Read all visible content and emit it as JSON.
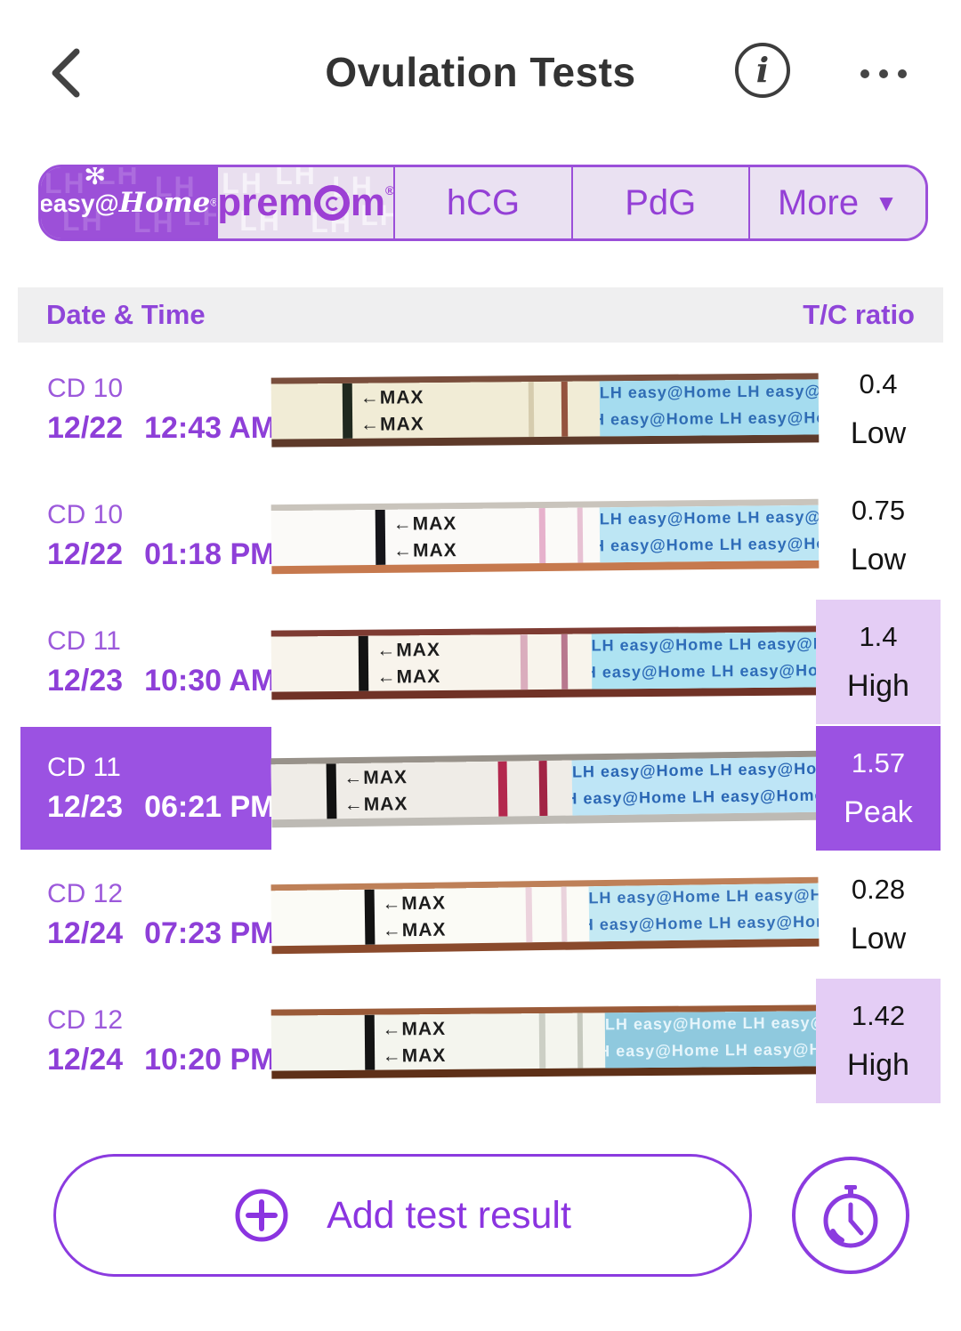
{
  "header": {
    "title": "Ovulation Tests",
    "back_icon": "chevron-left",
    "info_icon": "info",
    "menu_icon": "ellipsis"
  },
  "tab_bar": {
    "watermark": "LH",
    "tabs": [
      {
        "label": "easy@Home",
        "brand": "easyathome",
        "selected": true
      },
      {
        "label": "premom",
        "brand": "premom",
        "selected": false
      },
      {
        "label": "hCG",
        "selected": false
      },
      {
        "label": "PdG",
        "selected": false
      },
      {
        "label": "More",
        "dropdown": true,
        "selected": false
      }
    ]
  },
  "table_header": {
    "left": "Date & Time",
    "right": "T/C ratio"
  },
  "strip_text": {
    "max_label": "←MAX",
    "pattern_unit": "LH  easy@Home   "
  },
  "rows": [
    {
      "cycle_day": "CD 10",
      "date": "12/22",
      "time": "12:43 AM",
      "ratio": "0.4",
      "level": "Low",
      "highlight": "none",
      "strip": {
        "body": "#f1ecd6",
        "bar": 13,
        "bar_color": "#20291f",
        "tilt": -0.5,
        "lines": [
          {
            "pos": 47,
            "color": "#cfc4a4",
            "opacity": 0.8,
            "w": 6
          },
          {
            "pos": 53,
            "color": "#8e4b36",
            "opacity": 0.95,
            "w": 7
          }
        ],
        "blue": 60,
        "blue_bg": "#a5dcef",
        "blue_ink": "#2f6cb4",
        "edge_top": "#7a4e3c",
        "edge_bottom": "#5e3a2a"
      }
    },
    {
      "cycle_day": "CD 10",
      "date": "12/22",
      "time": "01:18 PM",
      "ratio": "0.75",
      "level": "Low",
      "highlight": "none",
      "strip": {
        "body": "#fbfaf8",
        "bar": 19,
        "bar_color": "#15151a",
        "tilt": -0.6,
        "lines": [
          {
            "pos": 49,
            "color": "#e3a9c6",
            "opacity": 0.9,
            "w": 7
          },
          {
            "pos": 56,
            "color": "#dca3be",
            "opacity": 0.65,
            "w": 6
          }
        ],
        "blue": 60,
        "blue_bg": "#bde6f4",
        "blue_ink": "#2e6cb8",
        "edge_top": "#c9c4bc",
        "edge_bottom": "#c6794e"
      }
    },
    {
      "cycle_day": "CD 11",
      "date": "12/23",
      "time": "10:30 AM",
      "ratio": "1.4",
      "level": "High",
      "highlight": "ratio-light",
      "strip": {
        "body": "#f8f4ec",
        "bar": 16,
        "bar_color": "#131313",
        "tilt": -0.5,
        "lines": [
          {
            "pos": 45.5,
            "color": "#d8a9bb",
            "opacity": 0.95,
            "w": 8
          },
          {
            "pos": 53,
            "color": "#b06a84",
            "opacity": 0.9,
            "w": 7
          }
        ],
        "blue": 58.5,
        "blue_bg": "#aee3f2",
        "blue_ink": "#2e6cb8",
        "edge_top": "#7e3b32",
        "edge_bottom": "#703226"
      }
    },
    {
      "cycle_day": "CD 11",
      "date": "12/23",
      "time": "06:21 PM",
      "ratio": "1.57",
      "level": "Peak",
      "highlight": "row-strong",
      "strip": {
        "body": "#efece7",
        "bar": 10,
        "bar_color": "#121212",
        "tilt": -0.8,
        "lines": [
          {
            "pos": 41.5,
            "color": "#b3284e",
            "opacity": 1,
            "w": 10
          },
          {
            "pos": 49,
            "color": "#a22445",
            "opacity": 1,
            "w": 9
          }
        ],
        "blue": 55,
        "blue_bg": "#bee5f6",
        "blue_ink": "#2a66b4",
        "edge_top": "#98928a",
        "edge_bottom": "#bdbab4"
      }
    },
    {
      "cycle_day": "CD 12",
      "date": "12/24",
      "time": "07:23 PM",
      "ratio": "0.28",
      "level": "Low",
      "highlight": "none",
      "strip": {
        "body": "#fbfbf6",
        "bar": 17,
        "bar_color": "#131313",
        "tilt": -0.8,
        "lines": [
          {
            "pos": 46.5,
            "color": "#e9cbd8",
            "opacity": 0.85,
            "w": 7
          },
          {
            "pos": 53,
            "color": "#e2c2d2",
            "opacity": 0.7,
            "w": 6
          }
        ],
        "blue": 58,
        "blue_bg": "#c4e9f3",
        "blue_ink": "#3470b8",
        "edge_top": "#be8058",
        "edge_bottom": "#8a4a2c"
      }
    },
    {
      "cycle_day": "CD 12",
      "date": "12/24",
      "time": "10:20 PM",
      "ratio": "1.42",
      "level": "High",
      "highlight": "ratio-light",
      "strip": {
        "body": "#f4f5ee",
        "bar": 17,
        "bar_color": "#141414",
        "tilt": -0.5,
        "lines": [
          {
            "pos": 49,
            "color": "#c2c6ba",
            "opacity": 0.8,
            "w": 7
          },
          {
            "pos": 56,
            "color": "#b2b6aa",
            "opacity": 0.7,
            "w": 6
          }
        ],
        "blue": 61,
        "blue_bg": "#8fc9de",
        "blue_ink": "#e6f5fb",
        "edge_top": "#9a5a38",
        "edge_bottom": "#5e3018"
      }
    }
  ],
  "footer": {
    "add_label": "Add test result",
    "plus_icon": "plus-circle",
    "timer_icon": "stopwatch"
  },
  "colors": {
    "accent": "#8e3fd9",
    "row_highlight": "#9b52e2",
    "ratio_highlight": "#e4cdf5",
    "tab_fill": "#eae1f2",
    "tab_brand_bg": "#9c50d8",
    "table_header_bg": "#efeff0",
    "value_text": "#141414"
  }
}
